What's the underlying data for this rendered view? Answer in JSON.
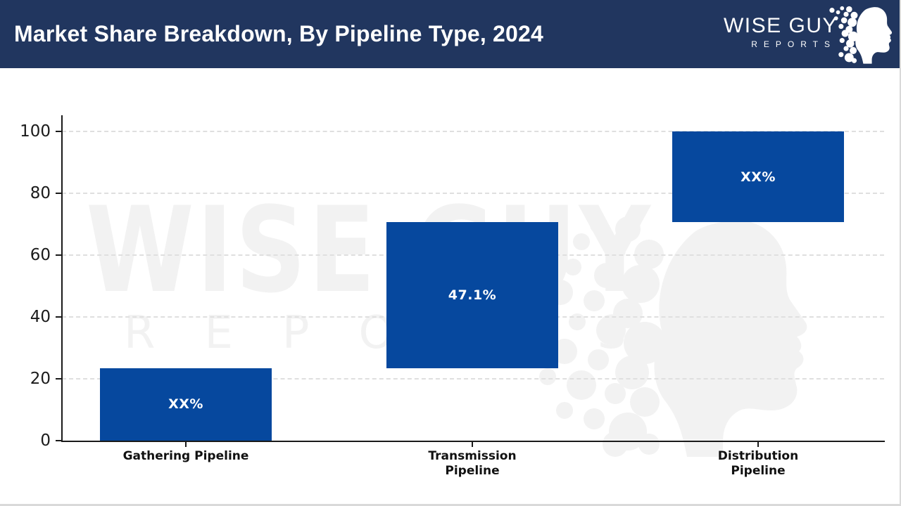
{
  "header": {
    "title": "Market Share Breakdown, By Pipeline Type, 2024",
    "bg_color": "#21365f",
    "logo": {
      "line1": "WISE GUY",
      "line2": "REPORTS"
    }
  },
  "watermark": {
    "line1": "WISE GUY",
    "line2": "REPORTS"
  },
  "chart_data": {
    "type": "bar",
    "subtype": "floating-stacked-percentage-bars",
    "title": "Market Share Breakdown, By Pipeline Type, 2024",
    "categories": [
      "Gathering Pipeline",
      "Transmission Pipeline",
      "Distribution Pipeline"
    ],
    "xlabel_lines": [
      [
        "Gathering Pipeline"
      ],
      [
        "Transmission",
        "Pipeline"
      ],
      [
        "Distribution",
        "Pipeline"
      ]
    ],
    "segments": [
      {
        "category": "Gathering Pipeline",
        "start": 0,
        "end": 23.5,
        "value_label": "XX%"
      },
      {
        "category": "Transmission Pipeline",
        "start": 23.5,
        "end": 70.6,
        "value_label": "47.1%"
      },
      {
        "category": "Distribution Pipeline",
        "start": 70.6,
        "end": 100,
        "value_label": "XX%"
      }
    ],
    "yticks": [
      0,
      20,
      40,
      60,
      80,
      100
    ],
    "ylim": [
      0,
      104.5
    ],
    "xlabel": "",
    "ylabel": "",
    "grid": "horizontal-dashed",
    "legend": "none",
    "bar_color": "#06489e",
    "bar_label_color": "#ffffff",
    "axis_color": "#1a1a1a",
    "gridline_color": "#dfdfdf"
  }
}
